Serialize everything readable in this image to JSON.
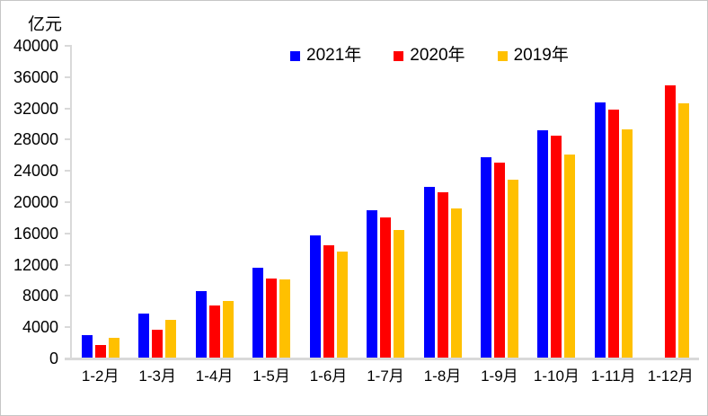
{
  "chart_data": {
    "type": "bar",
    "title": "",
    "unit_label": "亿元",
    "categories": [
      "1-2月",
      "1-3月",
      "1-4月",
      "1-5月",
      "1-6月",
      "1-7月",
      "1-8月",
      "1-9月",
      "1-10月",
      "1-11月",
      "1-12月"
    ],
    "series": [
      {
        "name": "2021年",
        "color": "#0000FF",
        "values": [
          3050,
          5800,
          8600,
          11600,
          15700,
          19000,
          22000,
          25700,
          29200,
          32800,
          null
        ]
      },
      {
        "name": "2020年",
        "color": "#FF0000",
        "values": [
          1750,
          3700,
          6750,
          10200,
          14450,
          18000,
          21300,
          25100,
          28550,
          31800,
          34950
        ]
      },
      {
        "name": "2019年",
        "color": "#FFC000",
        "values": [
          2650,
          4950,
          7400,
          10100,
          13650,
          16500,
          19200,
          22900,
          26150,
          29350,
          32700
        ]
      }
    ],
    "y_axis": {
      "min": 0,
      "max": 40000,
      "step": 4000,
      "tick_labels": [
        "0",
        "4000",
        "8000",
        "12000",
        "16000",
        "20000",
        "24000",
        "28000",
        "32000",
        "36000",
        "40000"
      ]
    },
    "legend_position": "top",
    "grid": false,
    "axis_color": "#D9D9D9",
    "background_color": "#FFFFFF"
  }
}
